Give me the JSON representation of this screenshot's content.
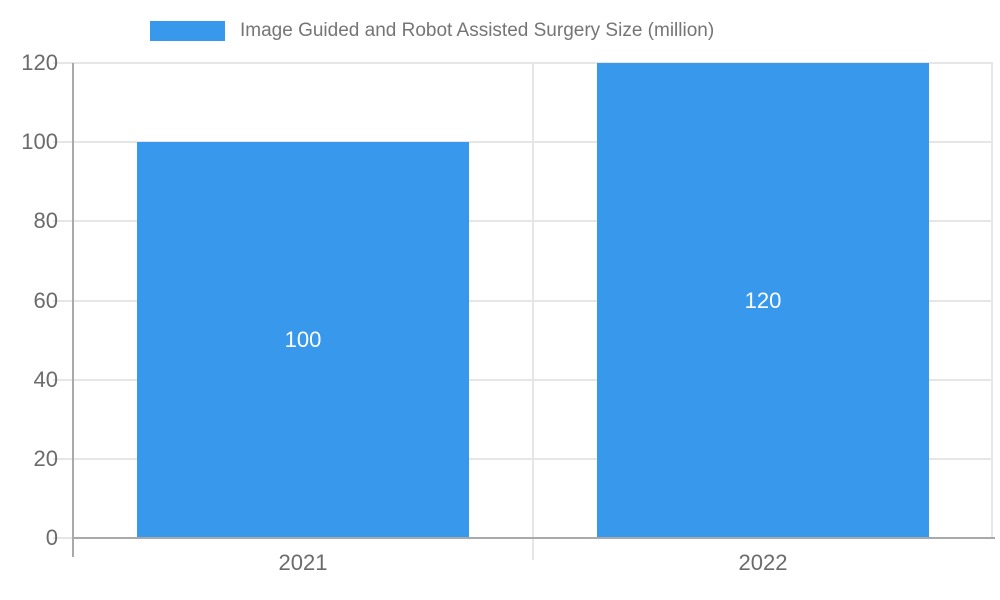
{
  "legend": {
    "label": "Image Guided and Robot Assisted Surgery Size (million)"
  },
  "chart_data": {
    "type": "bar",
    "title": "",
    "categories": [
      "2021",
      "2022"
    ],
    "series": [
      {
        "name": "Image Guided and Robot Assisted Surgery Size (million)",
        "values": [
          100,
          120
        ]
      }
    ],
    "data_labels": [
      "100",
      "120"
    ],
    "xlabel": "",
    "ylabel": "",
    "ylim": [
      0,
      120
    ],
    "yticks": [
      0,
      20,
      40,
      60,
      80,
      100,
      120
    ],
    "grid": true,
    "legend_position": "top",
    "colors": {
      "bar": "#3899ec",
      "data_label_text": "#ffffff",
      "gridline": "#e6e6e6",
      "axis_line": "#a9a9a9",
      "tick_text": "#6b6b6b",
      "legend_text": "#757575",
      "background": "#ffffff"
    }
  }
}
